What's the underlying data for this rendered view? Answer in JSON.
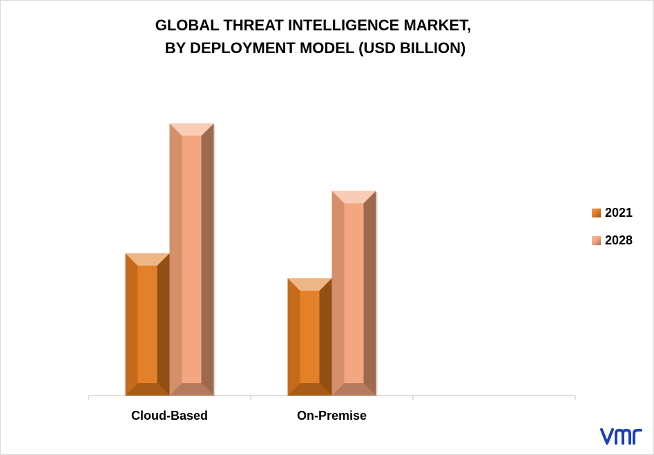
{
  "chart_data": {
    "type": "bar",
    "title_lines": [
      "GLOBAL THREAT INTELLIGENCE MARKET,",
      " BY DEPLOYMENT MODEL (USD BILLION)"
    ],
    "categories": [
      "Cloud-Based",
      "On-Premise"
    ],
    "series": [
      {
        "name": "2021",
        "values": [
          5.7,
          4.7
        ],
        "color": "#e07a1f"
      },
      {
        "name": "2028",
        "values": [
          10.9,
          8.2
        ],
        "color": "#f2a27a"
      }
    ],
    "ylim": [
      0,
      12.8
    ],
    "grid": false,
    "legend_position": "right",
    "style": "3d-pyramid-top-column"
  },
  "logo": {
    "text": "vmr",
    "color": "#1a3fb8"
  }
}
